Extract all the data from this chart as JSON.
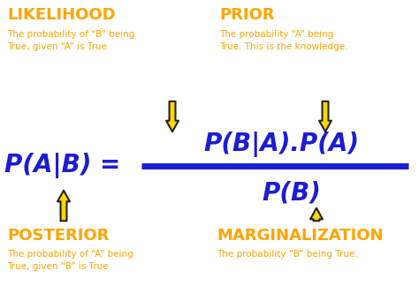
{
  "bg_color": "#ffffff",
  "blue": "#1c1cd4",
  "orange": "#ffa500",
  "arrow_face": "#ffd700",
  "arrow_edge": "#222222",
  "formula_lhs": "P(A|B) =",
  "formula_numerator": "P(B|A).P(A)",
  "formula_denominator": "P(B)",
  "likelihood_title": "LIKELIHOOD",
  "likelihood_desc": "The probability of “B” being\nTrue, given “A” is True",
  "prior_title": "PRIOR",
  "prior_desc": "The probability “A” being\nTrue. This is the knowledge.",
  "posterior_title": "POSTERIOR",
  "posterior_desc": "The probability of “A” being\nTrue, given “B” is True",
  "marginalization_title": "MARGINALIZATION",
  "marginalization_desc": "The probability “B” being True.",
  "figsize": [
    4.74,
    3.41
  ],
  "dpi": 100
}
